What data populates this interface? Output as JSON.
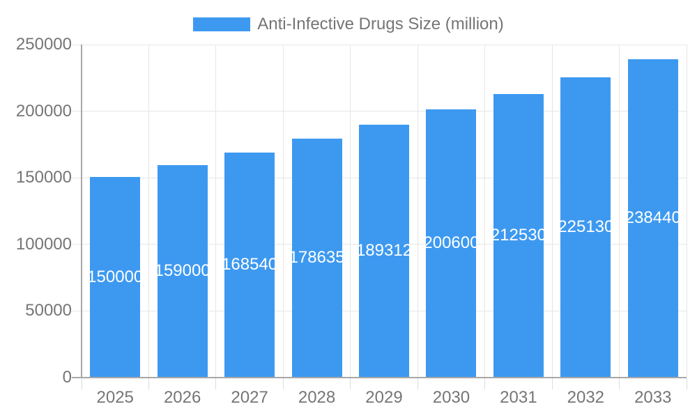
{
  "legend": {
    "label": "Anti-Infective Drugs Size (million)"
  },
  "colors": {
    "bar": "#3d99f0",
    "axis_text": "#757575",
    "value_label": "#ffffff",
    "gridline": "#e6e6e6",
    "boundary_tick": "#dcdcdc",
    "axis_line": "#a8a8a8",
    "background": "#ffffff"
  },
  "chart_data": {
    "type": "bar",
    "title": "Anti-Infective Drugs Size (million)",
    "categories": [
      "2025",
      "2026",
      "2027",
      "2028",
      "2029",
      "2030",
      "2031",
      "2032",
      "2033"
    ],
    "series": [
      {
        "name": "Anti-Infective Drugs Size (million)",
        "values": [
          150000,
          159000,
          168540,
          178635,
          189312,
          200600,
          212530,
          225130,
          238440
        ]
      }
    ],
    "value_labels_shown": [
      150000,
      159000,
      168540,
      178635,
      189312,
      200600,
      212530,
      225130,
      238440
    ],
    "xlabel": "",
    "ylabel": "",
    "ylim": [
      0,
      250000
    ],
    "yticks": [
      0,
      50000,
      100000,
      150000,
      200000,
      250000
    ],
    "grid": true,
    "legend_position": "top-center",
    "bar_label_position": "inside-center"
  }
}
